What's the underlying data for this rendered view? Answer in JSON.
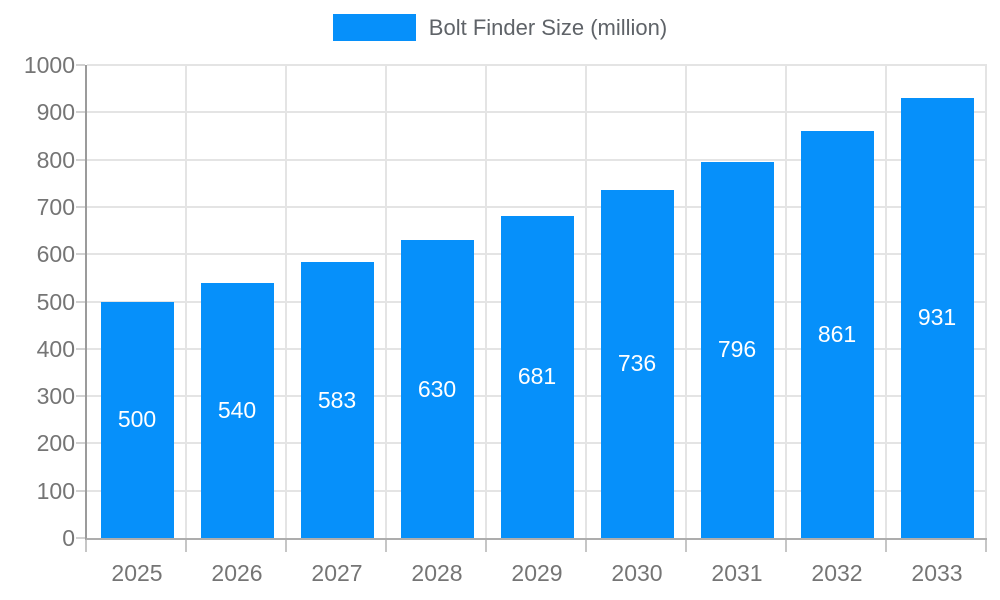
{
  "chart_data": {
    "type": "bar",
    "title": "",
    "legend_label": "Bolt Finder Size (million)",
    "legend_position": "top",
    "categories": [
      "2025",
      "2026",
      "2027",
      "2028",
      "2029",
      "2030",
      "2031",
      "2032",
      "2033"
    ],
    "values": [
      500,
      540,
      583,
      630,
      681,
      736,
      796,
      861,
      931
    ],
    "xlabel": "",
    "ylabel": "",
    "ylim": [
      0,
      1000
    ],
    "ytick_step": 100,
    "grid": true,
    "bar_color": "#0690FA",
    "bar_value_label_color": "#ffffff",
    "axis_text_color": "#757575",
    "legend_text_color": "#5f6368",
    "gridline_color": "#e4e4e4"
  }
}
